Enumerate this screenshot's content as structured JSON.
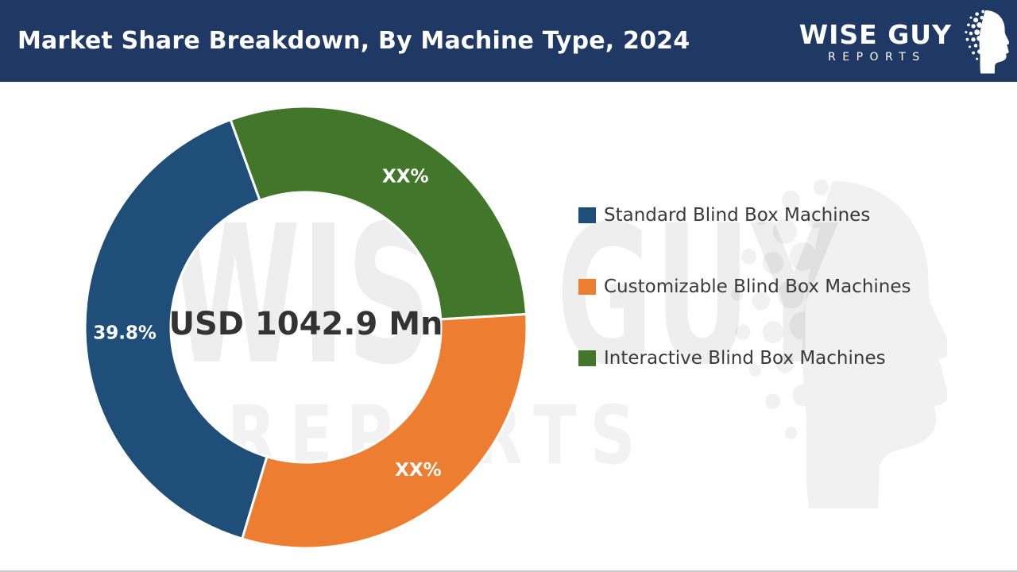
{
  "header": {
    "title": "Market Share Breakdown, By Machine Type, 2024",
    "bg_color": "#1F3864",
    "logo": {
      "line1": "WISE GUY",
      "line2": "REPORTS"
    }
  },
  "chart_data": {
    "type": "pie",
    "subtype": "donut",
    "title": "Market Share Breakdown, By Machine Type, 2024",
    "center_label": "USD 1042.9 Mn",
    "start_angle_deg": 3.4,
    "direction": "counterclockwise",
    "slices": [
      {
        "name": "Interactive Blind Box Machines",
        "label": "XX%",
        "pct_of_circle": 29.6,
        "color": "#41762B"
      },
      {
        "name": "Standard Blind Box Machines",
        "label": "39.8%",
        "pct_of_circle": 39.8,
        "color": "#1F4E79"
      },
      {
        "name": "Customizable Blind Box Machines",
        "label": "XX%",
        "pct_of_circle": 30.6,
        "color": "#ED7D31"
      }
    ],
    "gap_color": "#FFFFFF",
    "legend_position": "right"
  },
  "legend": {
    "items": [
      {
        "label": "Standard Blind Box Machines",
        "color": "#1F4E79"
      },
      {
        "label": "Customizable Blind Box Machines",
        "color": "#ED7D31"
      },
      {
        "label": "Interactive Blind Box Machines",
        "color": "#41762B"
      }
    ]
  },
  "watermark": {
    "line1": "WISE GUY",
    "line2": "REPORTS"
  }
}
